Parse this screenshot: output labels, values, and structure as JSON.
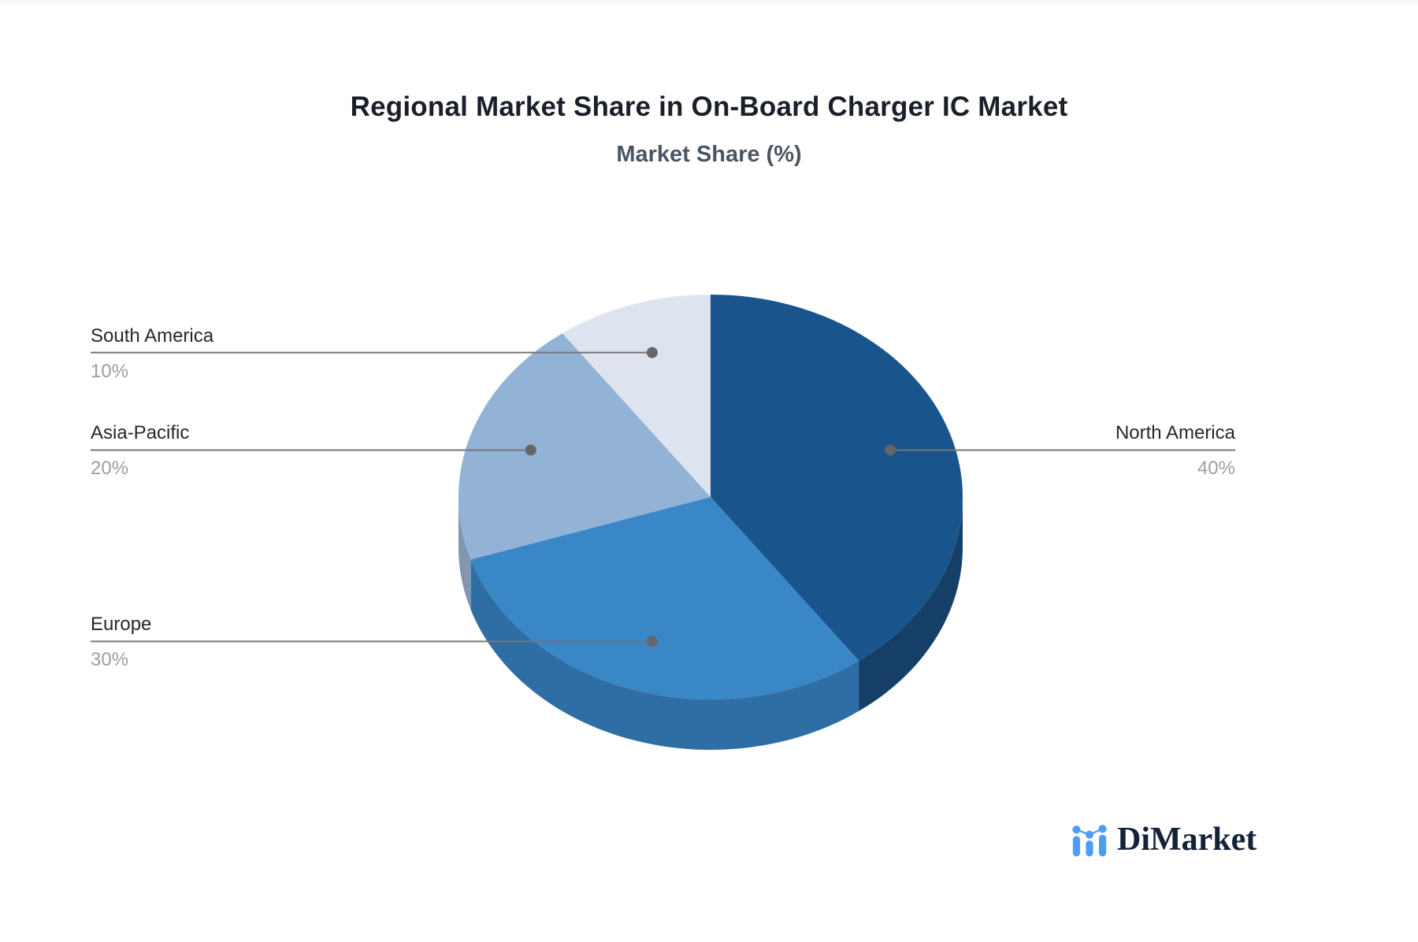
{
  "page": {
    "title": "Regional Market Share in On-Board Charger IC Market",
    "subtitle": "Market Share (%)",
    "title_color": "#1a1f29",
    "subtitle_color": "#4a5564",
    "background_color": "#ffffff"
  },
  "chart_data": {
    "type": "pie",
    "title": "Regional Market Share in On-Board Charger IC Market",
    "subtitle": "Market Share (%)",
    "unit": "%",
    "style": "3d-pie",
    "start_angle_deg": 0,
    "direction": "clockwise",
    "legend_position": "leader-lines",
    "slices": [
      {
        "label": "North America",
        "value": 40,
        "display_value": "40%",
        "color": "#19558C",
        "side_color": "#153F68"
      },
      {
        "label": "Europe",
        "value": 30,
        "display_value": "30%",
        "color": "#3A87C8",
        "side_color": "#2F6EA5"
      },
      {
        "label": "Asia-Pacific",
        "value": 20,
        "display_value": "20%",
        "color": "#92B3D6",
        "side_color": "#8297AD"
      },
      {
        "label": "South America",
        "value": 10,
        "display_value": "10%",
        "color": "#DDE4EF",
        "side_color": "#C5CEDD"
      }
    ],
    "label_text_color": "#23282e",
    "value_text_color": "#9a9ea3",
    "leader_line_color": "#757575",
    "leader_dot_color": "#666666"
  },
  "logo": {
    "name": "DiMarket",
    "icon": "bar-chart-logo-icon",
    "icon_color": "#4D9DF6",
    "text_color": "#142238"
  }
}
